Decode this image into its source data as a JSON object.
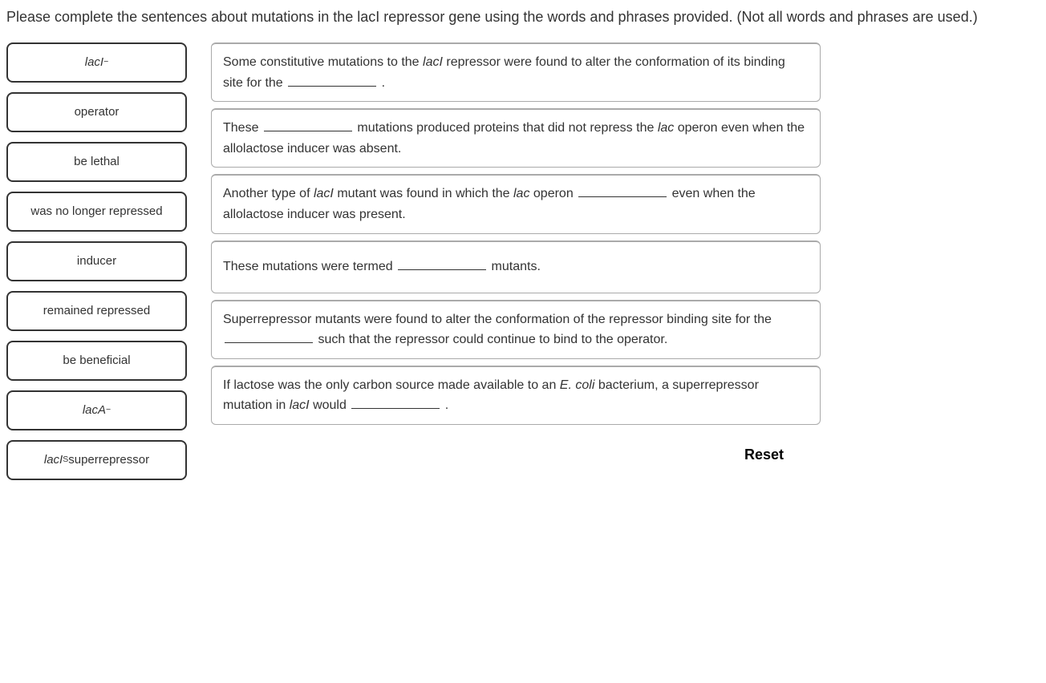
{
  "question": "Please complete the sentences about mutations in the lacI repressor gene using the words and phrases provided. (Not all words and phrases are used.)",
  "wordbank": [
    {
      "html": "<span class='ital'>lacI</span><sup>−</sup>"
    },
    {
      "html": "operator"
    },
    {
      "html": "be lethal"
    },
    {
      "html": "was no longer repressed"
    },
    {
      "html": "inducer"
    },
    {
      "html": "remained repressed"
    },
    {
      "html": "be beneficial"
    },
    {
      "html": "<span class='ital'>lacA</span><sup>−</sup>"
    },
    {
      "html": "<span class='ital'>lacI</span><sup>S</sup> superrepressor"
    }
  ],
  "sentences": [
    {
      "html": "Some constitutive mutations to the <span class='ital'>lacI</span> repressor were found to alter the conformation of its binding site for the <span class='blank'></span> ."
    },
    {
      "html": "These <span class='blank'></span> mutations produced proteins that did not repress the <span class='ital'>lac</span> operon even when the allolactose inducer was absent."
    },
    {
      "html": "Another type of <span class='ital'>lacI</span> mutant was found in which the <span class='ital'>lac</span> operon <span class='blank'></span> even when the allolactose inducer was present."
    },
    {
      "html": "These mutations were termed <span class='blank'></span> mutants."
    },
    {
      "html": "Superrepressor mutants were found to alter the conformation of the repressor binding site for the <span class='blank'></span> such that the repressor could continue to bind to the operator."
    },
    {
      "html": "If lactose was the only carbon source made available to an <span class='ital'>E. coli</span> bacterium, a superrepressor mutation in <span class='ital'>lacI</span> would <span class='blank'></span> ."
    }
  ],
  "reset_label": "Reset",
  "colors": {
    "text": "#333333",
    "border_dark": "#333333",
    "border_light": "#aaaaaa",
    "background": "#ffffff"
  }
}
